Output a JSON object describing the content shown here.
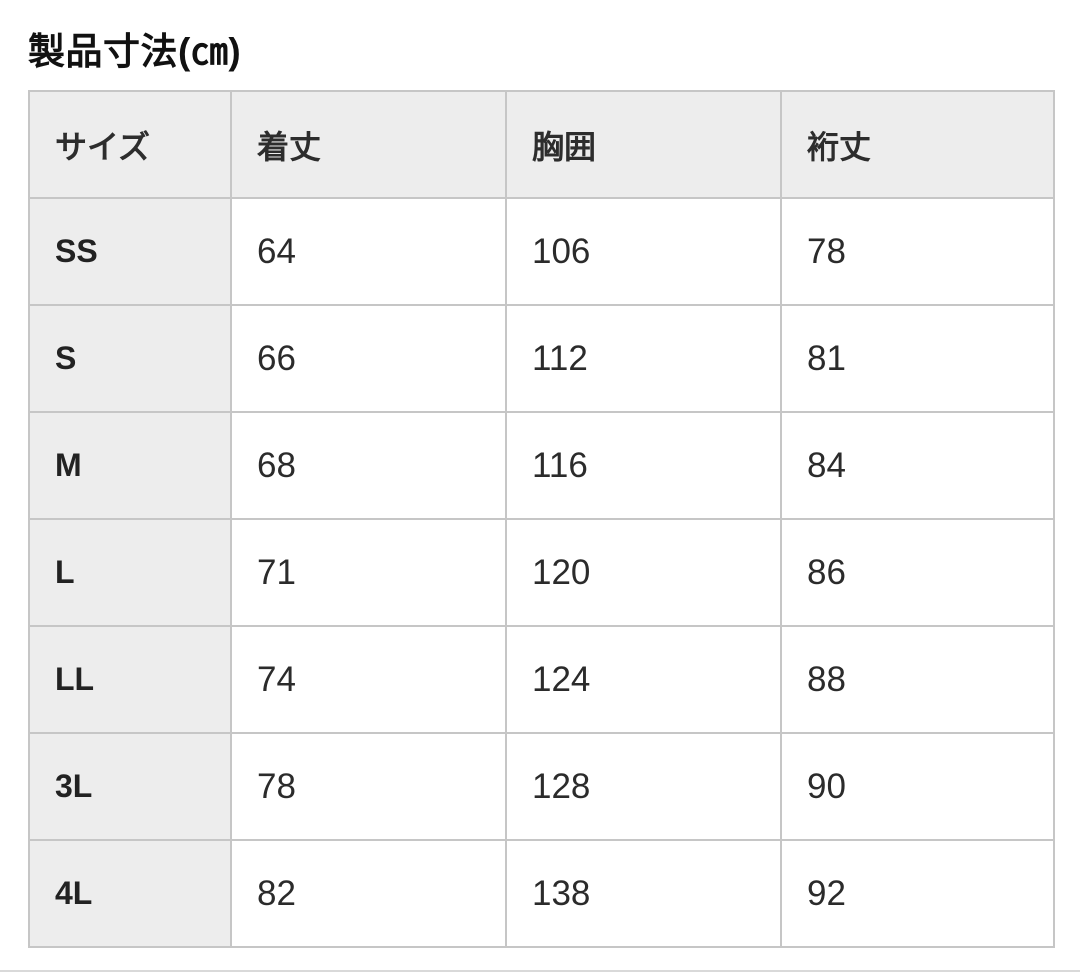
{
  "page": {
    "title": "製品寸法(㎝)"
  },
  "chart_data": {
    "type": "table",
    "title": "製品寸法(㎝)",
    "unit": "cm",
    "columns": [
      "サイズ",
      "着丈",
      "胸囲",
      "裄丈"
    ],
    "rows": [
      [
        "SS",
        "64",
        "106",
        "78"
      ],
      [
        "S",
        "66",
        "112",
        "81"
      ],
      [
        "M",
        "68",
        "116",
        "84"
      ],
      [
        "L",
        "71",
        "120",
        "86"
      ],
      [
        "LL",
        "74",
        "124",
        "88"
      ],
      [
        "3L",
        "78",
        "128",
        "90"
      ],
      [
        "4L",
        "82",
        "138",
        "92"
      ]
    ]
  },
  "colors": {
    "header_bg": "#ededed",
    "border": "#c6c6c6",
    "data_text": "#2b2b2b",
    "title_text": "#111111",
    "bottom_divider": "#d9d9d9"
  }
}
